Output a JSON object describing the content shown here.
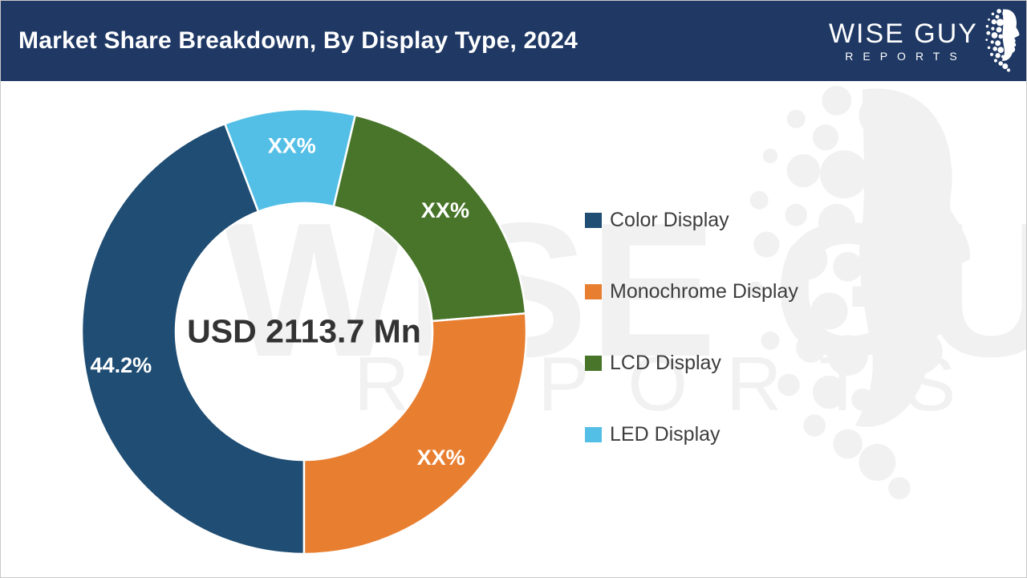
{
  "header": {
    "title": "Market Share Breakdown, By Display Type, 2024",
    "logo": {
      "name": "WISE GUY",
      "subtitle": "REPORTS"
    }
  },
  "watermark": {
    "name": "WISE GUY",
    "subtitle": "REPORTS"
  },
  "chart_data": {
    "type": "pie",
    "subtype": "donut",
    "title": "Market Share Breakdown, By Display Type, 2024",
    "center_label": "USD 2113.7 Mn",
    "start_angle_deg_clockwise_from_top": 180,
    "direction": "clockwise",
    "slices": [
      {
        "label": "Color Display",
        "display_label": "44.2%",
        "value_pct": 44.2,
        "color": "#1f4d73"
      },
      {
        "label": "LED Display",
        "display_label": "XX%",
        "value_pct": 9.5,
        "color": "#54bfe6"
      },
      {
        "label": "LCD Display",
        "display_label": "XX%",
        "value_pct": 20.0,
        "color": "#487529"
      },
      {
        "label": "Monochrome Display",
        "display_label": "XX%",
        "value_pct": 26.3,
        "color": "#e87e30"
      }
    ],
    "legend_order": [
      0,
      3,
      2,
      1
    ],
    "legend_position": "right",
    "slice_label_color": "#ffffff"
  },
  "colors": {
    "header_bg": "#1f3864",
    "header_text": "#ffffff",
    "center_text": "#333333",
    "legend_text": "#3d3d3d",
    "watermark": "#f1f1f1",
    "page_border": "#c9c9c9",
    "background": "#ffffff"
  }
}
